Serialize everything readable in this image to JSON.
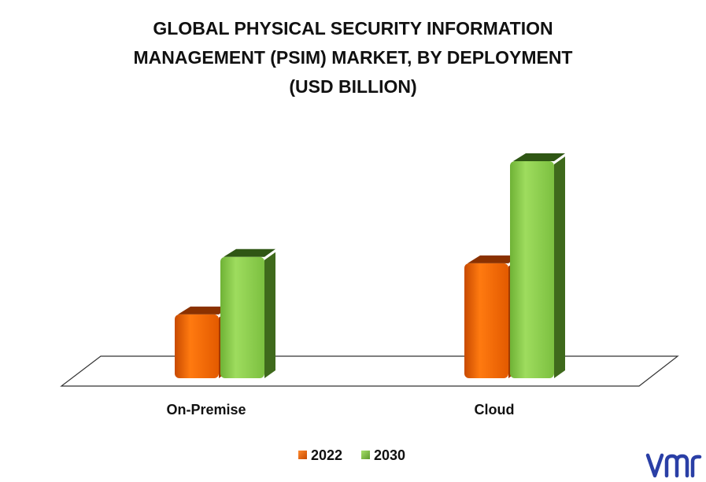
{
  "chart_data": {
    "type": "bar",
    "title_lines": [
      "GLOBAL PHYSICAL SECURITY INFORMATION",
      "MANAGEMENT (PSIM) MARKET, BY DEPLOYMENT",
      "(USD BILLION)"
    ],
    "categories": [
      "On-Premise",
      "Cloud"
    ],
    "series": [
      {
        "name": "2022",
        "values": [
          1.0,
          1.8
        ],
        "color": "#FF6A00",
        "side_color": "#A33A00",
        "top_color": "#8A3100"
      },
      {
        "name": "2030",
        "values": [
          1.9,
          3.4
        ],
        "color": "#8ED14E",
        "side_color": "#3F6A1C",
        "top_color": "#2F5614"
      }
    ],
    "ylim": [
      0,
      3.5
    ],
    "grid": false,
    "legend_position": "bottom-center",
    "logo_text": "vmr"
  }
}
